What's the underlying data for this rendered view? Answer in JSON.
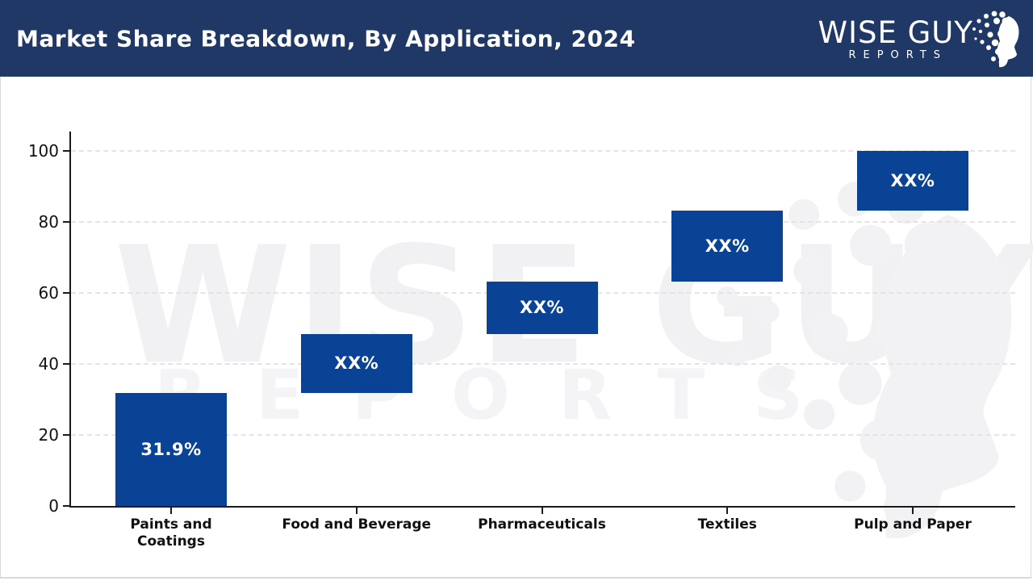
{
  "header": {
    "title": "Market Share Breakdown, By Application, 2024",
    "logo": {
      "line1": "WISE GUY",
      "line2": "REPORTS"
    }
  },
  "watermark": {
    "line1": "WISE GUY",
    "line2": "REPORTS"
  },
  "colors": {
    "header_bg": "#1f3865",
    "bar": "#0a4296",
    "bar_label_text": "#ffffff",
    "axis": "#1a1a1a",
    "gridline": "#e4e4e4",
    "watermark": "#f1f1f4"
  },
  "chart_data": {
    "type": "bar",
    "subtype": "waterfall",
    "title": "Market Share Breakdown, By Application, 2024",
    "xlabel": "",
    "ylabel": "",
    "ylim": [
      0,
      106
    ],
    "yticks": [
      0,
      20,
      40,
      60,
      80,
      100
    ],
    "grid": "horizontal dashed",
    "legend": "none",
    "categories": [
      "Paints and Coatings",
      "Food and Beverage",
      "Pharmaceuticals",
      "Textiles",
      "Pulp and Paper"
    ],
    "segments": [
      {
        "category": "Paints and Coatings",
        "label_lines": [
          "Paints and",
          "Coatings"
        ],
        "start": 0,
        "end": 31.9,
        "value_label": "31.9%"
      },
      {
        "category": "Food and Beverage",
        "label_lines": [
          "Food and Beverage"
        ],
        "start": 31.9,
        "end": 48.5,
        "value_label": "XX%"
      },
      {
        "category": "Pharmaceuticals",
        "label_lines": [
          "Pharmaceuticals"
        ],
        "start": 48.5,
        "end": 63.2,
        "value_label": "XX%"
      },
      {
        "category": "Textiles",
        "label_lines": [
          "Textiles"
        ],
        "start": 63.2,
        "end": 83.2,
        "value_label": "XX%"
      },
      {
        "category": "Pulp and Paper",
        "label_lines": [
          "Pulp and Paper"
        ],
        "start": 83.2,
        "end": 100,
        "value_label": "XX%"
      }
    ]
  }
}
